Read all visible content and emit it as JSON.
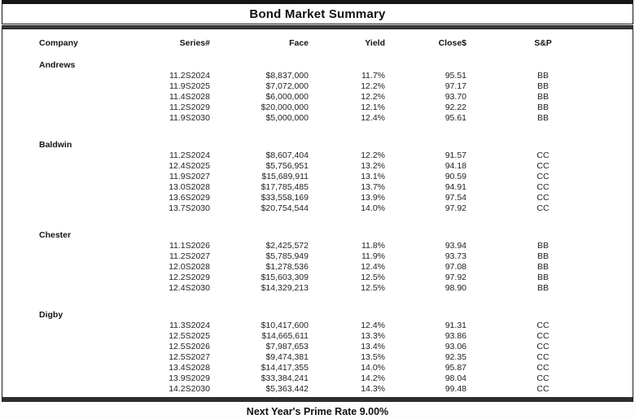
{
  "title": "Bond Market Summary",
  "footer": "Next Year's Prime Rate 9.00%",
  "table": {
    "headers": [
      "Company",
      "Series#",
      "Face",
      "Yield",
      "Close$",
      "S&P"
    ],
    "companies": [
      {
        "name": "Andrews",
        "bonds": [
          {
            "series": "11.2S2024",
            "face": "$8,837,000",
            "yield": "11.7%",
            "close": "95.51",
            "sp": "BB"
          },
          {
            "series": "11.9S2025",
            "face": "$7,072,000",
            "yield": "12.2%",
            "close": "97.17",
            "sp": "BB"
          },
          {
            "series": "11.4S2028",
            "face": "$6,000,000",
            "yield": "12.2%",
            "close": "93.70",
            "sp": "BB"
          },
          {
            "series": "11.2S2029",
            "face": "$20,000,000",
            "yield": "12.1%",
            "close": "92.22",
            "sp": "BB"
          },
          {
            "series": "11.9S2030",
            "face": "$5,000,000",
            "yield": "12.4%",
            "close": "95.61",
            "sp": "BB"
          }
        ]
      },
      {
        "name": "Baldwin",
        "bonds": [
          {
            "series": "11.2S2024",
            "face": "$8,607,404",
            "yield": "12.2%",
            "close": "91.57",
            "sp": "CC"
          },
          {
            "series": "12.4S2025",
            "face": "$5,756,951",
            "yield": "13.2%",
            "close": "94.18",
            "sp": "CC"
          },
          {
            "series": "11.9S2027",
            "face": "$15,689,911",
            "yield": "13.1%",
            "close": "90.59",
            "sp": "CC"
          },
          {
            "series": "13.0S2028",
            "face": "$17,785,485",
            "yield": "13.7%",
            "close": "94.91",
            "sp": "CC"
          },
          {
            "series": "13.6S2029",
            "face": "$33,558,169",
            "yield": "13.9%",
            "close": "97.54",
            "sp": "CC"
          },
          {
            "series": "13.7S2030",
            "face": "$20,754,544",
            "yield": "14.0%",
            "close": "97.92",
            "sp": "CC"
          }
        ]
      },
      {
        "name": "Chester",
        "bonds": [
          {
            "series": "11.1S2026",
            "face": "$2,425,572",
            "yield": "11.8%",
            "close": "93.94",
            "sp": "BB"
          },
          {
            "series": "11.2S2027",
            "face": "$5,785,949",
            "yield": "11.9%",
            "close": "93.73",
            "sp": "BB"
          },
          {
            "series": "12.0S2028",
            "face": "$1,278,536",
            "yield": "12.4%",
            "close": "97.08",
            "sp": "BB"
          },
          {
            "series": "12.2S2029",
            "face": "$15,603,309",
            "yield": "12.5%",
            "close": "97.92",
            "sp": "BB"
          },
          {
            "series": "12.4S2030",
            "face": "$14,329,213",
            "yield": "12.5%",
            "close": "98.90",
            "sp": "BB"
          }
        ]
      },
      {
        "name": "Digby",
        "bonds": [
          {
            "series": "11.3S2024",
            "face": "$10,417,600",
            "yield": "12.4%",
            "close": "91.31",
            "sp": "CC"
          },
          {
            "series": "12.5S2025",
            "face": "$14,665,611",
            "yield": "13.3%",
            "close": "93.86",
            "sp": "CC"
          },
          {
            "series": "12.5S2026",
            "face": "$7,987,653",
            "yield": "13.4%",
            "close": "93.06",
            "sp": "CC"
          },
          {
            "series": "12.5S2027",
            "face": "$9,474,381",
            "yield": "13.5%",
            "close": "92.35",
            "sp": "CC"
          },
          {
            "series": "13.4S2028",
            "face": "$14,417,355",
            "yield": "14.0%",
            "close": "95.87",
            "sp": "CC"
          },
          {
            "series": "13.9S2029",
            "face": "$33,384,241",
            "yield": "14.2%",
            "close": "98.04",
            "sp": "CC"
          },
          {
            "series": "14.2S2030",
            "face": "$5,363,442",
            "yield": "14.3%",
            "close": "99.48",
            "sp": "CC"
          }
        ]
      }
    ]
  }
}
